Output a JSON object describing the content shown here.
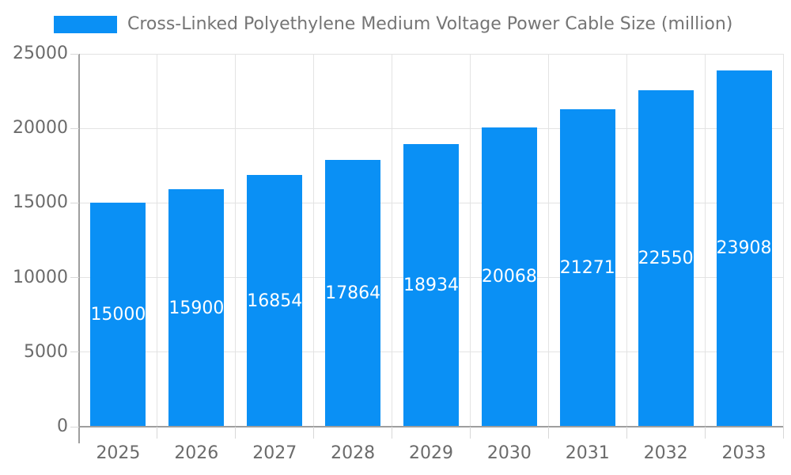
{
  "chart_data": {
    "type": "bar",
    "title": "Cross-Linked Polyethylene Medium Voltage Power Cable Size (million)",
    "categories": [
      "2025",
      "2026",
      "2027",
      "2028",
      "2029",
      "2030",
      "2031",
      "2032",
      "2033"
    ],
    "values": [
      15000,
      15900,
      16854,
      17864,
      18934,
      20068,
      21271,
      22550,
      23908
    ],
    "xlabel": "",
    "ylabel": "",
    "ylim": [
      0,
      25000
    ],
    "yticks": [
      0,
      5000,
      10000,
      15000,
      20000,
      25000
    ],
    "grid": true,
    "legend_position": "top-left",
    "value_labels_shown": true
  },
  "legend": {
    "series_label": "Cross-Linked Polyethylene Medium Voltage Power Cable Size (million)"
  },
  "colors": {
    "bar": "#0A90F5",
    "bar_label_text": "#FFFFFF",
    "legend_text": "#757575",
    "axis_text": "#6B6B6B",
    "grid_line": "#E3E3E3",
    "axis_line": "#9E9E9E",
    "tick_line": "#D8D8D8",
    "background": "#FFFFFF"
  }
}
